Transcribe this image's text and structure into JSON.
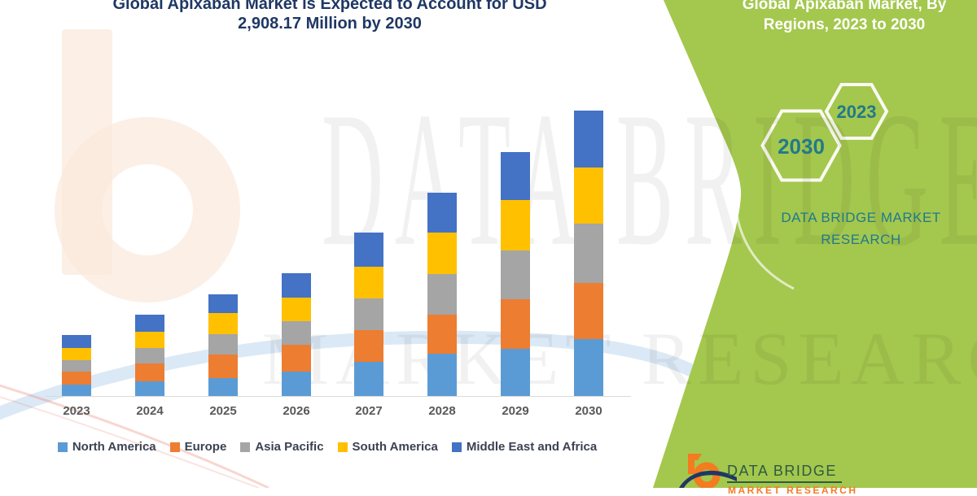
{
  "header": {
    "title_line1": "Global Apixaban Market is Expected to Account for USD",
    "title_line2": "2,908.17 Million by 2030",
    "title_color": "#1F3864"
  },
  "side_panel": {
    "bg_color": "#A4C74E",
    "heading_line1": "Global Apixaban Market, By",
    "heading_line2": "Regions, 2023 to 2030",
    "hexagons": [
      {
        "label": "2030"
      },
      {
        "label": "2023"
      }
    ],
    "brand_line1": "DATA BRIDGE MARKET",
    "brand_line2": "RESEARCH",
    "brand_color": "#217A8A"
  },
  "watermark": {
    "line1": "DATA BRIDGE",
    "line2": "MARKET RESEARCH"
  },
  "footer_logo": {
    "name_line": "DATA BRIDGE",
    "sub_line": "MARKET RESEARCH"
  },
  "chart_data": {
    "type": "bar",
    "stacked": true,
    "title": "Global Apixaban Market is Expected to Account for USD 2,908.17 Million by 2030",
    "unit": "USD Million",
    "categories": [
      "2023",
      "2024",
      "2025",
      "2026",
      "2027",
      "2028",
      "2029",
      "2030"
    ],
    "series": [
      {
        "name": "North America",
        "color": "#5B9BD5",
        "values": [
          124,
          157,
          190,
          256,
          355,
          438,
          488,
          587
        ]
      },
      {
        "name": "Europe",
        "color": "#ED7D31",
        "values": [
          132,
          182,
          240,
          273,
          322,
          397,
          504,
          570
        ]
      },
      {
        "name": "Asia Pacific",
        "color": "#A5A5A5",
        "values": [
          116,
          157,
          207,
          240,
          322,
          413,
          496,
          603
        ]
      },
      {
        "name": "South America",
        "color": "#FFC000",
        "values": [
          124,
          165,
          215,
          240,
          322,
          421,
          512,
          570
        ]
      },
      {
        "name": "Middle East and Africa",
        "color": "#4472C4",
        "values": [
          132,
          174,
          190,
          248,
          347,
          405,
          488,
          578.17
        ]
      }
    ],
    "totals_estimated": [
      628,
      835,
      1042,
      1257,
      1668,
      2074,
      2488,
      2908.17
    ],
    "values_estimated_from_bar_heights": true,
    "highlight_value_2030": "2,908.17",
    "legend_position": "bottom",
    "grid": false,
    "axis": {
      "x_label_color": "#595959",
      "baseline_color": "#D9D9D9"
    }
  }
}
